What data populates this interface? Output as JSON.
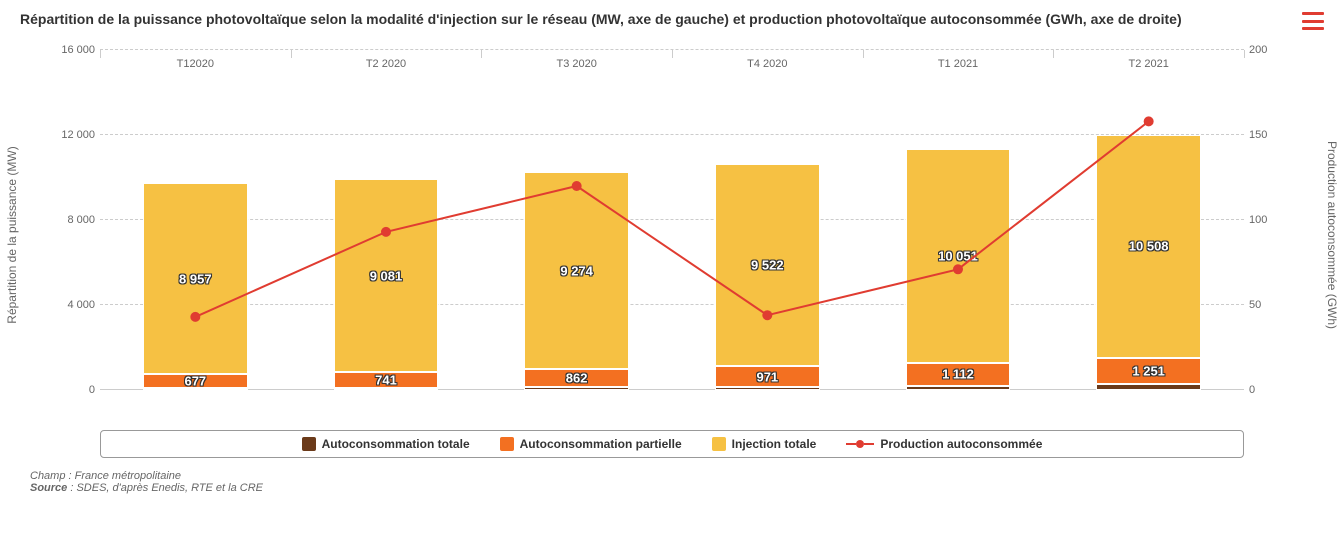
{
  "title": "Répartition de la puissance photovoltaïque selon la modalité d'injection sur le réseau (MW, axe de gauche) et production photovoltaïque autoconsommée (GWh, axe de droite)",
  "chart": {
    "type": "stacked-bar+line",
    "categories": [
      "T12020",
      "T2 2020",
      "T3 2020",
      "T4 2020",
      "T1 2021",
      "T2 2021"
    ],
    "y_left": {
      "title": "Répartition de la puissance (MW)",
      "min": 0,
      "max": 16000,
      "tick_step": 4000,
      "tick_labels": [
        "0",
        "4 000",
        "8 000",
        "12 000",
        "16 000"
      ]
    },
    "y_right": {
      "title": "Production autoconsommée (GWh)",
      "min": 0,
      "max": 200,
      "tick_step": 50,
      "tick_labels": [
        "0",
        "50",
        "100",
        "150",
        "200"
      ]
    },
    "series_bars": [
      {
        "name": "Autoconsommation totale",
        "color": "#6b3a1a",
        "values": [
          90,
          100,
          120,
          140,
          180,
          260
        ],
        "show_labels": false
      },
      {
        "name": "Autoconsommation partielle",
        "color": "#f37021",
        "values": [
          677,
          741,
          862,
          971,
          1112,
          1251
        ],
        "show_labels": true,
        "value_labels": [
          "677",
          "741",
          "862",
          "971",
          "1 112",
          "1 251"
        ]
      },
      {
        "name": "Injection totale",
        "color": "#f6c143",
        "values": [
          8957,
          9081,
          9274,
          9522,
          10051,
          10508
        ],
        "show_labels": true,
        "value_labels": [
          "8 957",
          "9 081",
          "9 274",
          "9 522",
          "10 051",
          "10 508"
        ]
      }
    ],
    "series_line": {
      "name": "Production autoconsommée",
      "color": "#e03c31",
      "values": [
        43,
        93,
        120,
        44,
        71,
        158
      ],
      "marker_radius": 5,
      "line_width": 2
    },
    "bar_width_ratio": 0.55,
    "grid_color": "#cccccc",
    "grid_dash": true,
    "background_color": "#ffffff",
    "label_fontsize": 12,
    "tick_fontsize": 11,
    "bar_label_fontsize": 13,
    "bar_label_color": "#ffffff",
    "bar_label_outline": "#333333"
  },
  "legend": {
    "items": [
      {
        "label": "Autoconsommation totale",
        "type": "swatch",
        "color": "#6b3a1a"
      },
      {
        "label": "Autoconsommation partielle",
        "type": "swatch",
        "color": "#f37021"
      },
      {
        "label": "Injection totale",
        "type": "swatch",
        "color": "#f6c143"
      },
      {
        "label": "Production autoconsommée",
        "type": "line",
        "color": "#e03c31"
      }
    ],
    "border_color": "#999999"
  },
  "footnotes": {
    "champ_label": "Champ : ",
    "champ_value": "France métropolitaine",
    "source_label": "Source",
    "source_value": " : SDES, d'après Enedis, RTE et la CRE"
  },
  "menu_icon_color": "#e03c31"
}
